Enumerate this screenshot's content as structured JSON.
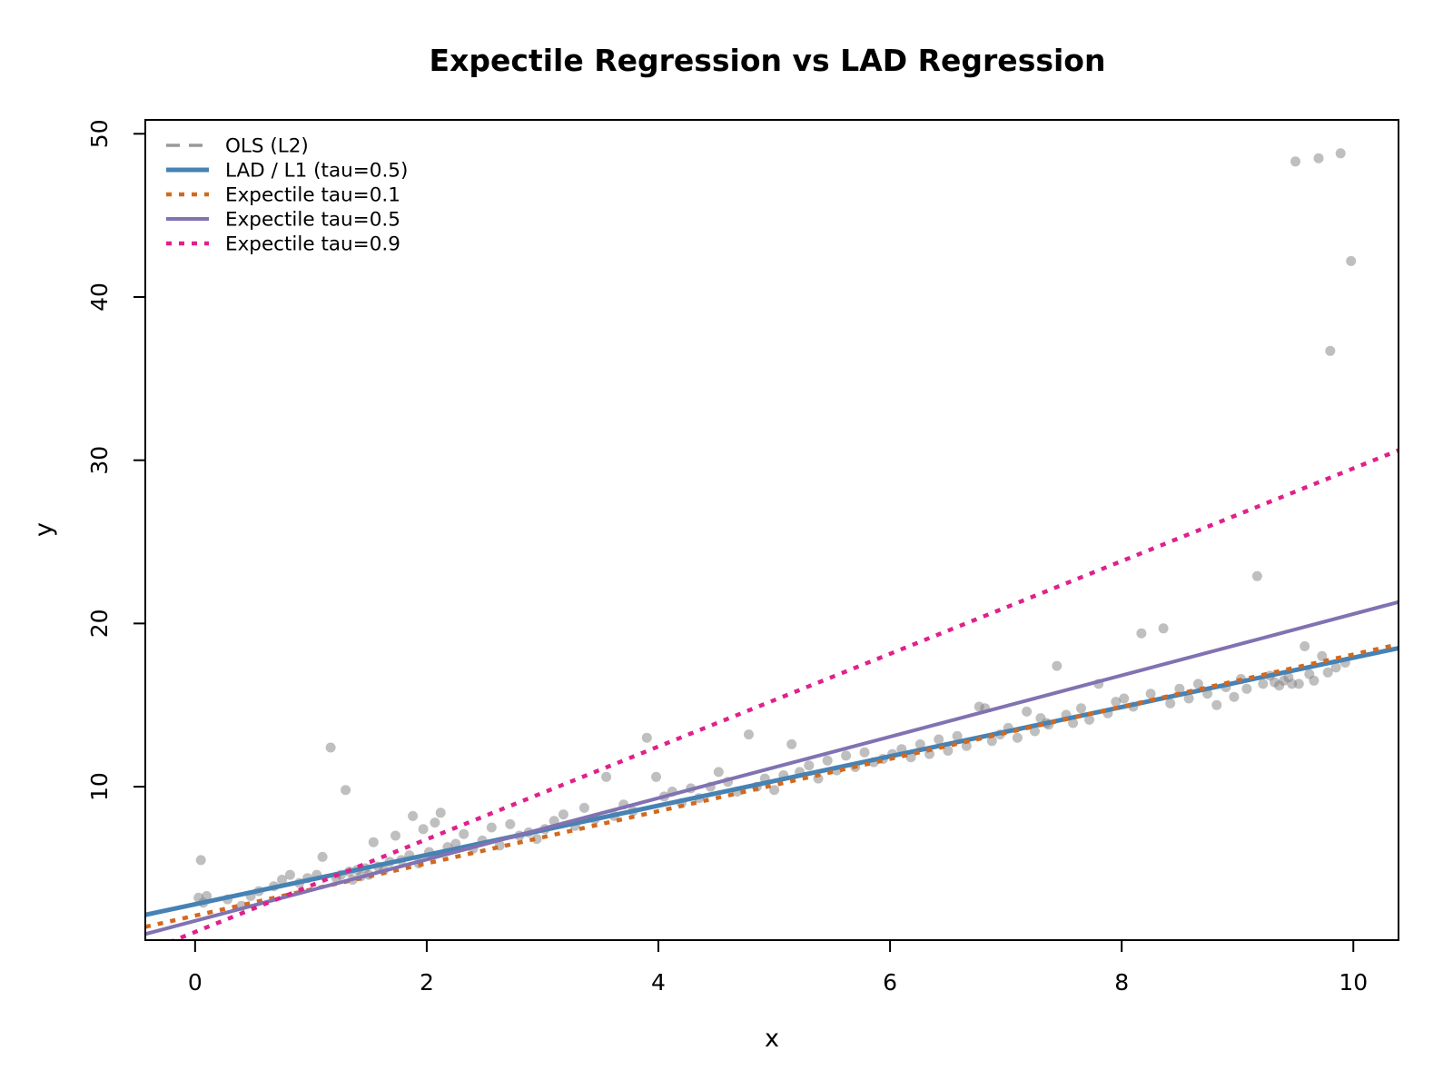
{
  "chart_data": {
    "type": "scatter",
    "title": "Expectile Regression vs LAD Regression",
    "xlabel": "x",
    "ylabel": "y",
    "xlim": [
      -0.43,
      10.39
    ],
    "ylim": [
      0.6,
      50.85
    ],
    "xticks": [
      0,
      2,
      4,
      6,
      8,
      10
    ],
    "yticks": [
      10,
      20,
      30,
      40,
      50
    ],
    "grid": false,
    "frame": "box",
    "point_style": {
      "color": "#808080",
      "opacity": 0.5,
      "radius": 5.5
    },
    "lines": [
      {
        "name": "OLS (L2)",
        "color": "#999999",
        "style": "dashed",
        "dash": "15,10",
        "width": 3.5,
        "intercept": 1.78,
        "slope": 1.88
      },
      {
        "name": "LAD / L1 (tau=0.5)",
        "color": "#4682B4",
        "style": "solid",
        "dash": "",
        "width": 5,
        "intercept": 2.8,
        "slope": 1.51
      },
      {
        "name": "Expectile tau=0.1",
        "color": "#D2691E",
        "style": "dotted",
        "dash": "6,8",
        "width": 4.5,
        "intercept": 2.1,
        "slope": 1.6
      },
      {
        "name": "Expectile tau=0.5",
        "color": "#8172B2",
        "style": "solid",
        "dash": "",
        "width": 4,
        "intercept": 1.78,
        "slope": 1.88
      },
      {
        "name": "Expectile tau=0.9",
        "color": "#E0218A",
        "style": "dotted",
        "dash": "6,8",
        "width": 4.5,
        "intercept": 1.1,
        "slope": 2.84
      }
    ],
    "legend": {
      "position": "top-left",
      "items": [
        {
          "label": "OLS (L2)",
          "color": "#999999",
          "dash": "15,10",
          "width": 3.5
        },
        {
          "label": "LAD / L1 (tau=0.5)",
          "color": "#4682B4",
          "dash": "",
          "width": 5
        },
        {
          "label": "Expectile tau=0.1",
          "color": "#D2691E",
          "dash": "6,8",
          "width": 4.5
        },
        {
          "label": "Expectile tau=0.5",
          "color": "#8172B2",
          "dash": "",
          "width": 4
        },
        {
          "label": "Expectile tau=0.9",
          "color": "#E0218A",
          "dash": "6,8",
          "width": 4.5
        }
      ]
    },
    "points": [
      [
        0.03,
        3.2
      ],
      [
        0.05,
        5.5
      ],
      [
        0.07,
        2.9
      ],
      [
        0.1,
        3.3
      ],
      [
        0.28,
        3.1
      ],
      [
        0.4,
        2.7
      ],
      [
        0.48,
        3.3
      ],
      [
        0.55,
        3.6
      ],
      [
        0.68,
        3.9
      ],
      [
        0.75,
        4.3
      ],
      [
        0.82,
        4.6
      ],
      [
        0.9,
        4.1
      ],
      [
        0.97,
        4.4
      ],
      [
        1.05,
        4.6
      ],
      [
        1.1,
        5.7
      ],
      [
        1.17,
        12.4
      ],
      [
        1.22,
        4.4
      ],
      [
        1.26,
        4.6
      ],
      [
        1.3,
        9.8
      ],
      [
        1.33,
        4.8
      ],
      [
        1.36,
        4.3
      ],
      [
        1.4,
        4.9
      ],
      [
        1.43,
        4.5
      ],
      [
        1.47,
        5.0
      ],
      [
        1.5,
        4.6
      ],
      [
        1.54,
        6.6
      ],
      [
        1.58,
        5.1
      ],
      [
        1.63,
        4.9
      ],
      [
        1.68,
        5.4
      ],
      [
        1.73,
        7.0
      ],
      [
        1.78,
        5.5
      ],
      [
        1.85,
        5.8
      ],
      [
        1.88,
        8.2
      ],
      [
        1.93,
        5.3
      ],
      [
        1.97,
        7.4
      ],
      [
        2.02,
        6.0
      ],
      [
        2.07,
        7.8
      ],
      [
        2.12,
        8.4
      ],
      [
        2.18,
        6.3
      ],
      [
        2.25,
        6.5
      ],
      [
        2.32,
        7.1
      ],
      [
        2.4,
        6.2
      ],
      [
        2.48,
        6.7
      ],
      [
        2.56,
        7.5
      ],
      [
        2.63,
        6.4
      ],
      [
        2.72,
        7.7
      ],
      [
        2.8,
        7.0
      ],
      [
        2.88,
        7.2
      ],
      [
        2.95,
        6.8
      ],
      [
        3.02,
        7.4
      ],
      [
        3.1,
        7.9
      ],
      [
        3.18,
        8.3
      ],
      [
        3.28,
        7.6
      ],
      [
        3.36,
        8.7
      ],
      [
        3.45,
        8.0
      ],
      [
        3.55,
        10.6
      ],
      [
        3.62,
        8.2
      ],
      [
        3.7,
        8.9
      ],
      [
        3.78,
        8.5
      ],
      [
        3.9,
        13.0
      ],
      [
        3.98,
        10.6
      ],
      [
        4.05,
        9.4
      ],
      [
        4.12,
        9.7
      ],
      [
        4.2,
        9.0
      ],
      [
        4.28,
        9.9
      ],
      [
        4.35,
        9.3
      ],
      [
        4.45,
        10.0
      ],
      [
        4.52,
        10.9
      ],
      [
        4.6,
        10.3
      ],
      [
        4.68,
        9.7
      ],
      [
        4.78,
        13.2
      ],
      [
        4.85,
        10.0
      ],
      [
        4.92,
        10.5
      ],
      [
        5.0,
        9.8
      ],
      [
        5.08,
        10.7
      ],
      [
        5.15,
        12.6
      ],
      [
        5.22,
        10.9
      ],
      [
        5.3,
        11.3
      ],
      [
        5.38,
        10.5
      ],
      [
        5.46,
        11.6
      ],
      [
        5.54,
        11.0
      ],
      [
        5.62,
        11.9
      ],
      [
        5.7,
        11.2
      ],
      [
        5.78,
        12.1
      ],
      [
        5.86,
        11.5
      ],
      [
        5.94,
        11.7
      ],
      [
        6.02,
        12.0
      ],
      [
        6.1,
        12.3
      ],
      [
        6.18,
        11.8
      ],
      [
        6.26,
        12.6
      ],
      [
        6.34,
        12.0
      ],
      [
        6.42,
        12.9
      ],
      [
        6.5,
        12.2
      ],
      [
        6.58,
        13.1
      ],
      [
        6.66,
        12.5
      ],
      [
        6.77,
        14.9
      ],
      [
        6.82,
        14.8
      ],
      [
        6.88,
        12.8
      ],
      [
        6.95,
        13.2
      ],
      [
        7.02,
        13.6
      ],
      [
        7.1,
        13.0
      ],
      [
        7.18,
        14.6
      ],
      [
        7.25,
        13.4
      ],
      [
        7.3,
        14.2
      ],
      [
        7.35,
        13.9
      ],
      [
        7.37,
        13.8
      ],
      [
        7.44,
        17.4
      ],
      [
        7.52,
        14.4
      ],
      [
        7.58,
        13.9
      ],
      [
        7.65,
        14.8
      ],
      [
        7.72,
        14.1
      ],
      [
        7.8,
        16.3
      ],
      [
        7.88,
        14.5
      ],
      [
        7.95,
        15.2
      ],
      [
        8.02,
        15.4
      ],
      [
        8.1,
        14.9
      ],
      [
        8.17,
        19.4
      ],
      [
        8.25,
        15.7
      ],
      [
        8.36,
        19.7
      ],
      [
        8.42,
        15.1
      ],
      [
        8.5,
        16.0
      ],
      [
        8.58,
        15.4
      ],
      [
        8.66,
        16.3
      ],
      [
        8.74,
        15.7
      ],
      [
        8.82,
        15.0
      ],
      [
        8.9,
        16.1
      ],
      [
        8.97,
        15.5
      ],
      [
        9.03,
        16.6
      ],
      [
        9.08,
        16.0
      ],
      [
        9.17,
        22.9
      ],
      [
        9.22,
        16.3
      ],
      [
        9.28,
        16.8
      ],
      [
        9.32,
        16.4
      ],
      [
        9.36,
        16.2
      ],
      [
        9.4,
        16.5
      ],
      [
        9.44,
        16.7
      ],
      [
        9.47,
        16.3
      ],
      [
        9.5,
        48.3
      ],
      [
        9.53,
        16.3
      ],
      [
        9.58,
        18.6
      ],
      [
        9.62,
        16.9
      ],
      [
        9.66,
        16.5
      ],
      [
        9.7,
        48.5
      ],
      [
        9.73,
        18.0
      ],
      [
        9.78,
        17.0
      ],
      [
        9.8,
        36.7
      ],
      [
        9.85,
        17.3
      ],
      [
        9.89,
        48.8
      ],
      [
        9.93,
        17.6
      ],
      [
        9.98,
        42.2
      ]
    ]
  }
}
